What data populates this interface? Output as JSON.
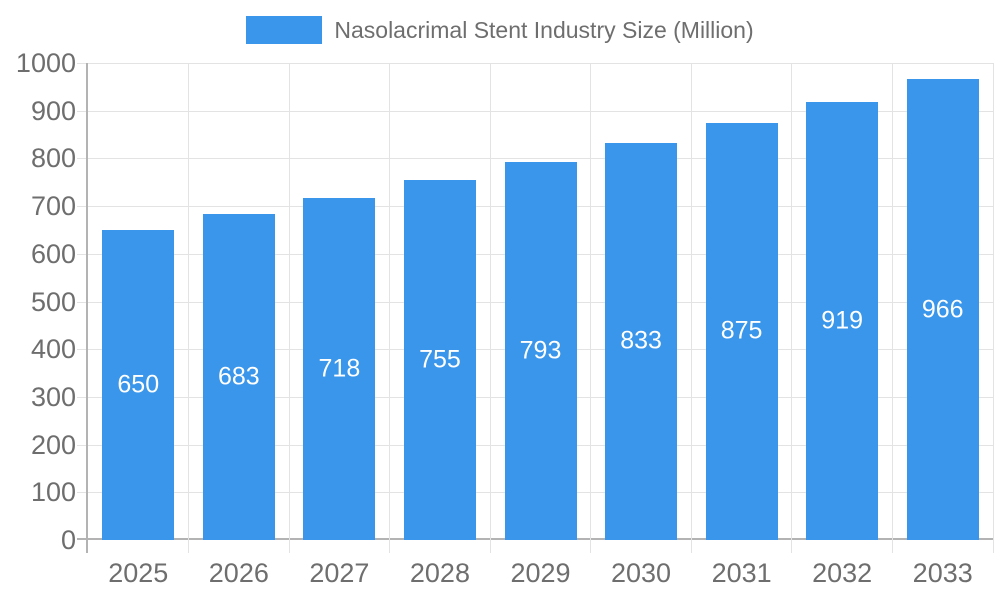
{
  "legend": {
    "label": "Nasolacrimal Stent Industry Size (Million)"
  },
  "chart_data": {
    "type": "bar",
    "title": "Nasolacrimal Stent Industry Size (Million)",
    "categories": [
      "2025",
      "2026",
      "2027",
      "2028",
      "2029",
      "2030",
      "2031",
      "2032",
      "2033"
    ],
    "values": [
      650,
      683,
      718,
      755,
      793,
      833,
      875,
      919,
      966
    ],
    "xlabel": "",
    "ylabel": "",
    "ylim": [
      0,
      1000
    ],
    "ytick_step": 100,
    "grid": true,
    "legend_position": "top-center",
    "bar_labels_inside": true,
    "colors": {
      "bar": "#3996EB",
      "bar_label": "#FFFFFF",
      "axis_text": "#6E6E6E",
      "grid": "#E3E3E3",
      "axis_line": "#B3B3B3",
      "background": "#FFFFFF"
    }
  }
}
